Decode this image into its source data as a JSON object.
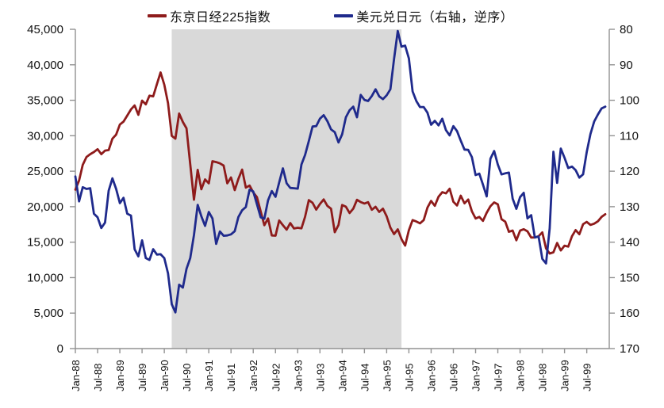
{
  "chart_data": {
    "type": "line",
    "title": "",
    "legend": [
      {
        "label": "东京日经225指数",
        "color": "#8E1B1B",
        "axis": "left"
      },
      {
        "label": "美元兑日元（右轴，逆序）",
        "color": "#1F2A8C",
        "axis": "right"
      }
    ],
    "x_axis": {
      "start": "1988-01",
      "frequency": "monthly",
      "n_points": 144,
      "tick_every_months": 6,
      "tick_labels": [
        "Jan-88",
        "Jul-88",
        "Jan-89",
        "Jul-89",
        "Jan-90",
        "Jul-90",
        "Jan-91",
        "Jul-91",
        "Jan-92",
        "Jul-92",
        "Jan-93",
        "Jul-93",
        "Jan-94",
        "Jul-94",
        "Jan-95",
        "Jul-95",
        "Jan-96",
        "Jul-96",
        "Jan-97",
        "Jul-97",
        "Jan-98",
        "Jul-98",
        "Jan-99",
        "Jul-99"
      ]
    },
    "y_left": {
      "min": 0,
      "max": 45000,
      "tick_step": 5000,
      "tick_values": [
        0,
        5000,
        10000,
        15000,
        20000,
        25000,
        30000,
        35000,
        40000,
        45000
      ],
      "tick_labels": [
        "0",
        "5,000",
        "10,000",
        "15,000",
        "20,000",
        "25,000",
        "30,000",
        "35,000",
        "40,000",
        "45,000"
      ]
    },
    "y_right": {
      "min": 80,
      "max": 170,
      "tick_step": 10,
      "inverted": true,
      "tick_values": [
        80,
        90,
        100,
        110,
        120,
        130,
        140,
        150,
        160,
        170
      ],
      "tick_labels": [
        "80",
        "90",
        "100",
        "110",
        "120",
        "130",
        "140",
        "150",
        "160",
        "170"
      ]
    },
    "shaded_region": {
      "start": "1990-03",
      "end": "1995-04",
      "color": "#D9D9D9"
    },
    "grid": false,
    "axis_color": "#929292",
    "text_color": "#111111",
    "series": [
      {
        "name": "东京日经225指数",
        "axis": "left",
        "color": "#8E1B1B",
        "values": [
          22400,
          23700,
          25900,
          27000,
          27400,
          27700,
          28100,
          27400,
          27900,
          27980,
          29580,
          30160,
          31580,
          31990,
          32840,
          33710,
          34270,
          32950,
          34950,
          34430,
          35640,
          35550,
          37270,
          38920,
          37190,
          34590,
          29980,
          29585,
          33130,
          31940,
          31040,
          25980,
          20985,
          25195,
          22455,
          23850,
          23295,
          26410,
          26290,
          26110,
          25790,
          23290,
          24120,
          22335,
          23915,
          25220,
          22685,
          22985,
          22025,
          21340,
          19345,
          17390,
          18350,
          15950,
          15910,
          18060,
          17400,
          16765,
          17685,
          16925,
          17025,
          16955,
          18590,
          20920,
          20550,
          19590,
          20380,
          21025,
          20105,
          19705,
          16405,
          17415,
          20230,
          20000,
          19110,
          19725,
          20975,
          20645,
          20450,
          20630,
          19565,
          19990,
          19260,
          19725,
          18650,
          17055,
          16140,
          16805,
          15435,
          14520,
          16680,
          18115,
          17915,
          17655,
          18110,
          19870,
          20815,
          20125,
          21405,
          22040,
          21875,
          22530,
          20695,
          20165,
          21555,
          20465,
          21020,
          19360,
          18330,
          18555,
          18005,
          19150,
          20070,
          20605,
          20330,
          18230,
          17890,
          16460,
          16635,
          15260,
          16630,
          16830,
          16525,
          15640,
          15670,
          15830,
          16380,
          14110,
          13405,
          13565,
          14885,
          13840,
          14500,
          14370,
          15835,
          16700,
          16110,
          17530,
          17860,
          17430,
          17605,
          17940,
          18560,
          18935
        ]
      },
      {
        "name": "美元兑日元（右轴，逆序）",
        "axis": "right",
        "color": "#1F2A8C",
        "values": [
          121.5,
          128.5,
          124.5,
          125.0,
          124.8,
          132.0,
          133.0,
          136.0,
          134.5,
          125.5,
          122.0,
          125.0,
          129.0,
          127.5,
          132.0,
          132.5,
          142.0,
          144.0,
          139.5,
          144.5,
          145.0,
          142.0,
          143.5,
          143.4,
          144.5,
          148.8,
          157.5,
          159.8,
          152.0,
          152.8,
          147.5,
          144.5,
          138.0,
          129.5,
          132.7,
          135.4,
          131.5,
          133.3,
          140.5,
          137.0,
          138.2,
          138.1,
          137.8,
          136.9,
          132.9,
          131.0,
          130.1,
          125.2,
          125.7,
          129.3,
          133.0,
          133.4,
          128.2,
          125.6,
          127.2,
          123.2,
          119.2,
          123.4,
          124.7,
          124.8,
          124.9,
          118.1,
          115.4,
          111.5,
          107.4,
          107.3,
          105.2,
          104.2,
          105.9,
          108.2,
          109.0,
          111.9,
          109.6,
          104.8,
          102.8,
          101.8,
          104.8,
          98.5,
          99.9,
          100.2,
          98.8,
          96.9,
          98.9,
          99.7,
          98.6,
          96.9,
          88.4,
          80.5,
          84.9,
          84.6,
          88.2,
          97.5,
          100.2,
          101.9,
          101.9,
          103.5,
          106.9,
          105.8,
          107.1,
          105.2,
          108.4,
          109.9,
          107.3,
          108.7,
          111.4,
          113.9,
          114.0,
          116.0,
          121.1,
          120.7,
          123.8,
          127.1,
          116.5,
          114.3,
          118.1,
          120.9,
          120.6,
          120.4,
          127.7,
          130.6,
          127.3,
          126.1,
          133.3,
          132.4,
          138.7,
          138.4,
          144.7,
          146.0,
          136.1,
          114.5,
          123.3,
          113.6,
          116.2,
          119.1,
          118.7,
          119.7,
          121.8,
          120.9,
          114.6,
          109.5,
          106.0,
          104.0,
          102.3,
          101.8
        ]
      }
    ]
  }
}
